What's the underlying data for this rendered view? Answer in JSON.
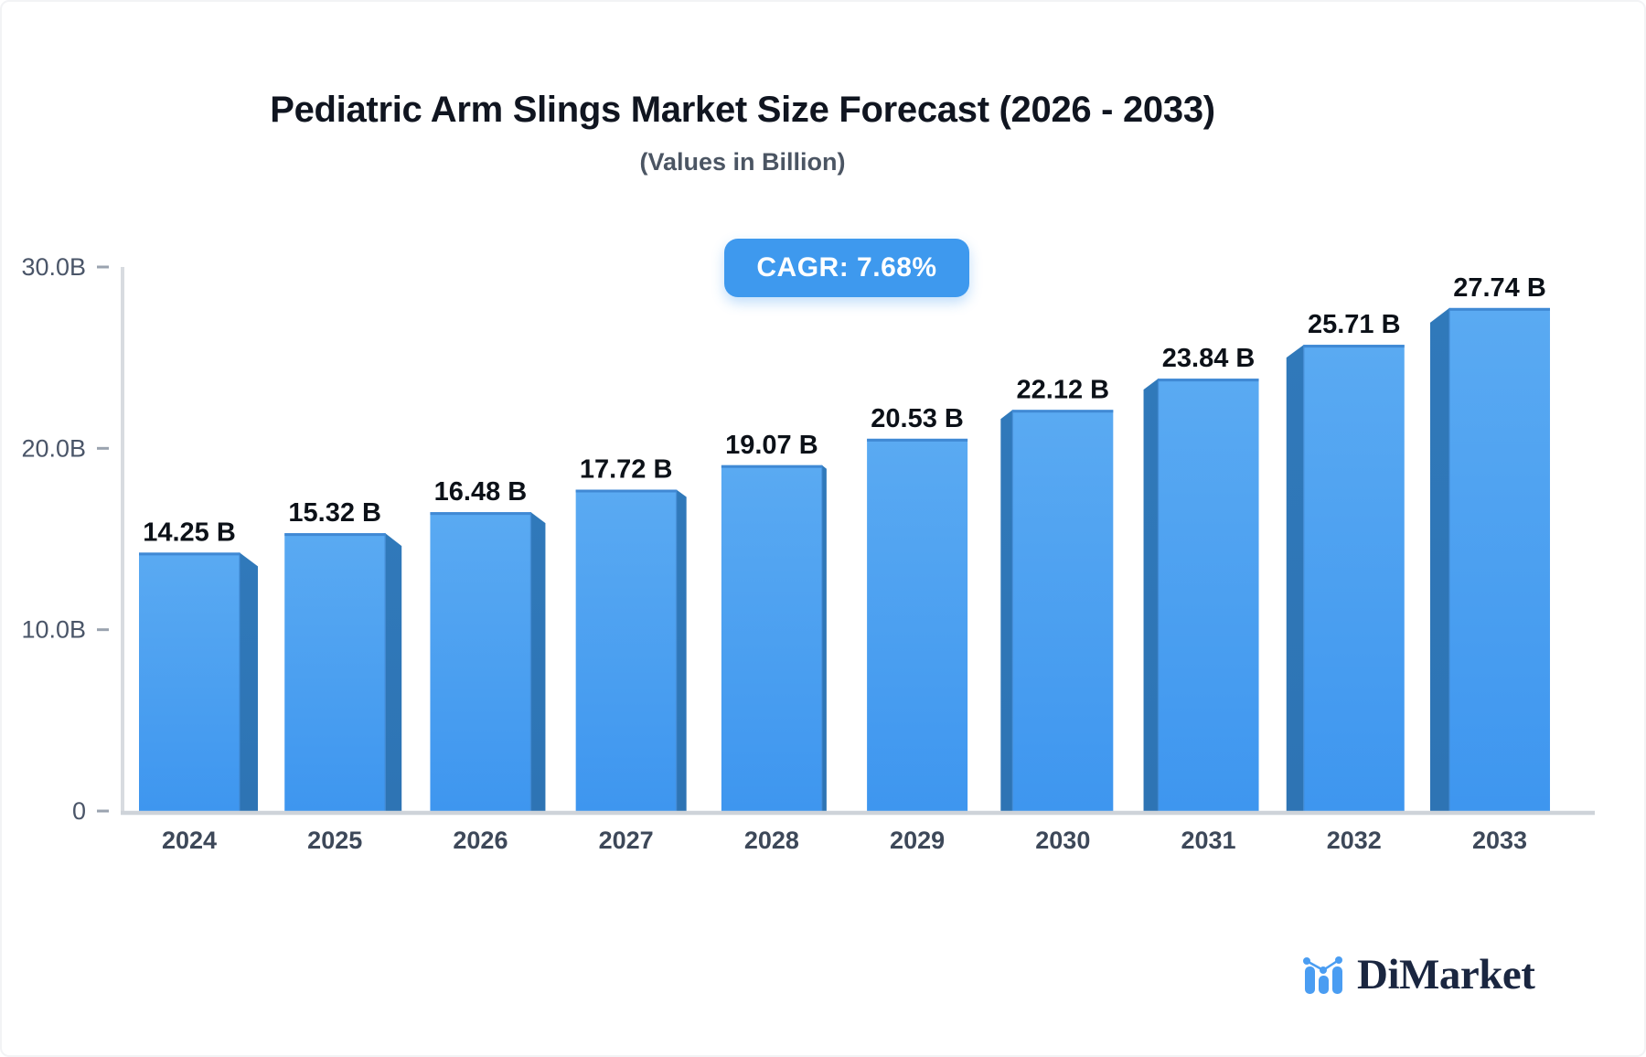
{
  "header": {
    "cagr_label": "CAGR: 7.68%"
  },
  "chart_data": {
    "type": "bar",
    "title": "Pediatric Arm Slings Market Size Forecast (2026 - 2033)",
    "subtitle": "(Values in Billion)",
    "unit": "Billion",
    "categories": [
      "2024",
      "2025",
      "2026",
      "2027",
      "2028",
      "2029",
      "2030",
      "2031",
      "2032",
      "2033"
    ],
    "values": [
      14.25,
      15.32,
      16.48,
      17.72,
      19.07,
      20.53,
      22.12,
      23.84,
      25.71,
      27.74
    ],
    "bar_labels": [
      "14.25 B",
      "15.32 B",
      "16.48 B",
      "17.72 B",
      "19.07 B",
      "20.53 B",
      "22.12 B",
      "23.84 B",
      "25.71 B",
      "27.74 B"
    ],
    "cagr": "CAGR: 7.68%",
    "ylim": [
      0,
      30
    ],
    "ytick_values": [
      0,
      10,
      20,
      30
    ],
    "ytick_labels": [
      "0",
      "10.0B",
      "20.0B",
      "30.0B"
    ],
    "grid": "off",
    "legend": "none",
    "colors": {
      "bar_front_top": "#5aaaf2",
      "bar_front_bottom": "#3e96ef",
      "bar_side": "#2e74b4",
      "bar_edge": "#4089d4",
      "badge_bg": "#3e99ee",
      "badge_text": "#ffffff",
      "axis_line": "#d8dbe0",
      "baseline": "#ced3d9",
      "tick_mark": "#9aa3af",
      "ytick_text": "#4a5568",
      "value_text": "#0c1118",
      "year_text": "#3d4859",
      "title_text": "#101520",
      "subtitle_text": "#4b5563",
      "logo_blue": "#4a9df2",
      "logo_navy": "#1a2640"
    }
  },
  "logo": {
    "name": "DiMarket"
  }
}
